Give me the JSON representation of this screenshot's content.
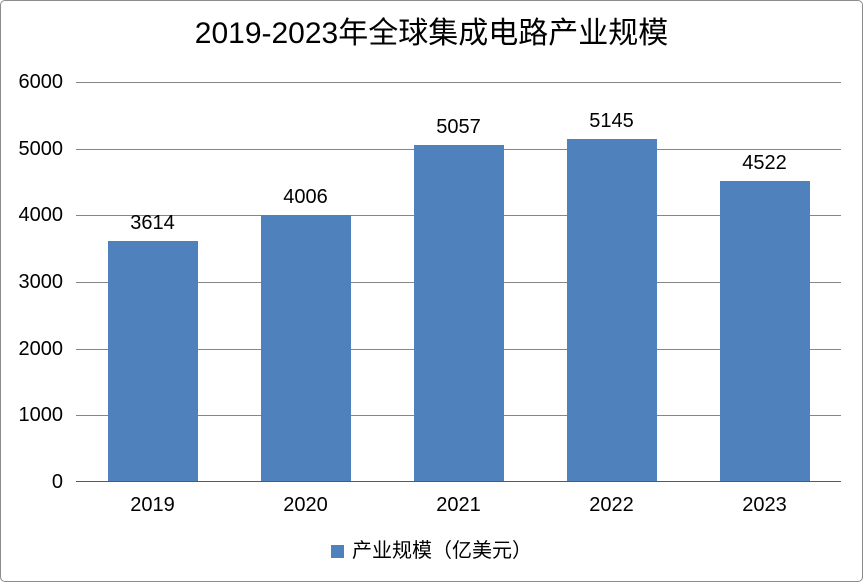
{
  "chart_data": {
    "type": "bar",
    "title": "2019-2023年全球集成电路产业规模",
    "categories": [
      "2019",
      "2020",
      "2021",
      "2022",
      "2023"
    ],
    "values": [
      3614,
      4006,
      5057,
      5145,
      4522
    ],
    "series": [
      {
        "name": "产业规模（亿美元）",
        "values": [
          3614,
          4006,
          5057,
          5145,
          4522
        ]
      }
    ],
    "xlabel": "",
    "ylabel": "",
    "ylim": [
      0,
      6000
    ],
    "yticks": [
      0,
      1000,
      2000,
      3000,
      4000,
      5000,
      6000
    ],
    "grid": true,
    "legend": {
      "label": "产业规模（亿美元）",
      "position": "bottom"
    },
    "data_labels_shown": true
  },
  "colors": {
    "bar": "#4F81BD",
    "gridline": "#868686",
    "axis_line": "#595959",
    "text": "#000000",
    "frame_border": "#8C8C8C",
    "background": "#FFFFFF"
  }
}
